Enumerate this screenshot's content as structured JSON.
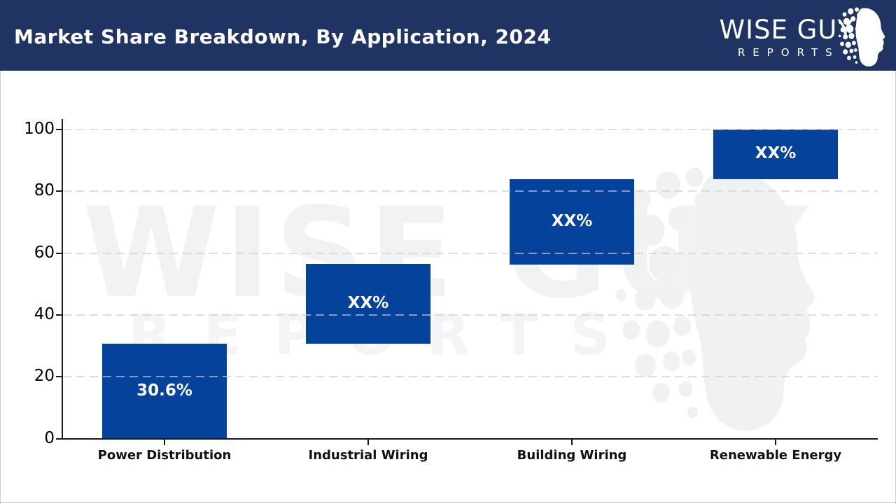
{
  "header": {
    "title": "Market Share Breakdown, By Application, 2024",
    "logo": {
      "line1": "WISE GUY",
      "line2": "REPORTS"
    }
  },
  "watermark": {
    "line1": "WISE GUY",
    "line2": "REPORTS"
  },
  "chart_data": {
    "type": "bar",
    "subtype": "waterfall",
    "title": "Market Share Breakdown, By Application, 2024",
    "categories": [
      "Power Distribution",
      "Industrial Wiring",
      "Building Wiring",
      "Renewable Energy"
    ],
    "segments": [
      {
        "category": "Power Distribution",
        "start": 0,
        "end": 30.6,
        "label": "30.6%"
      },
      {
        "category": "Industrial Wiring",
        "start": 30.6,
        "end": 56.4,
        "label": "XX%"
      },
      {
        "category": "Building Wiring",
        "start": 56.4,
        "end": 84.0,
        "label": "XX%"
      },
      {
        "category": "Renewable Energy",
        "start": 84.0,
        "end": 100.0,
        "label": "XX%"
      }
    ],
    "xlabel": "",
    "ylabel": "",
    "ylim": [
      0,
      100
    ],
    "yticks": [
      0,
      20,
      40,
      60,
      80,
      100
    ],
    "grid": "horizontal-dashed",
    "legend": null,
    "bar_color": "#05429b",
    "value_label_color": "#ffffff"
  },
  "colors": {
    "header_bg": "#1f3463",
    "bar": "#05429b",
    "axis": "#1a1a1a",
    "gridline": "#cdcdcd",
    "watermark": "#f1f2f4"
  }
}
